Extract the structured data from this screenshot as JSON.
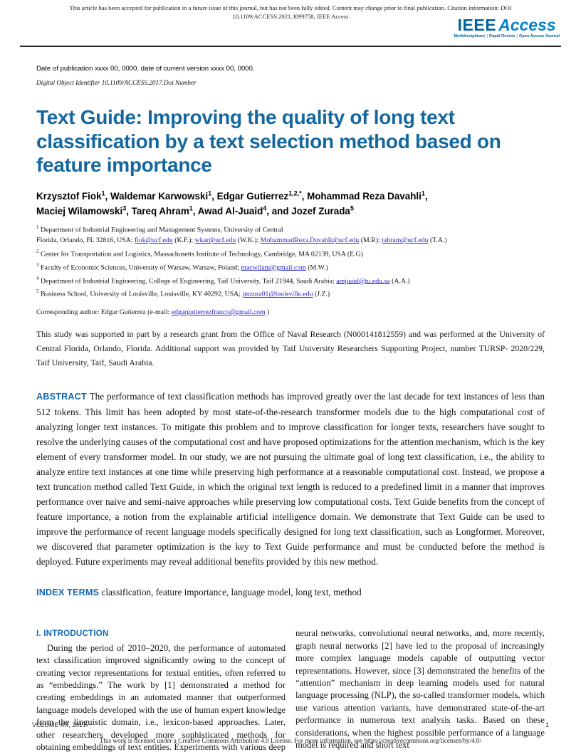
{
  "colors": {
    "title_blue": "#15679F",
    "label_blue": "#1268B3",
    "link_blue": "#2222CC",
    "logo_ieee_blue": "#00629B",
    "logo_access_blue": "#0083CA",
    "logo_pipe_orange": "#E37222"
  },
  "header": {
    "note_line1": "This article has been accepted for publication in a future issue of this journal, but has not been fully edited. Content may change prior to final publication. Citation information: DOI",
    "note_line2": "10.1109/ACCESS.2021.3099758, IEEE Access",
    "logo": {
      "ieee": "IEEE",
      "access": "Access",
      "tagline": [
        "Multidisciplinary",
        "Rapid Review",
        "Open Access Journal"
      ]
    }
  },
  "meta": {
    "date_line": "Date of publication xxxx 00, 0000, date of current version xxxx 00, 0000.",
    "doi_line": "Digital Object Identifier 10.1109/ACCESS.2017.Doi Number"
  },
  "title": "Text Guide: Improving the quality of long text classification by a text selection method based on feature importance",
  "authors": [
    {
      "name": "Krzysztof Fiok",
      "sup": "1",
      "sep": ", "
    },
    {
      "name": "Waldemar Karwowski",
      "sup": "1",
      "sep": ", "
    },
    {
      "name": "Edgar Gutierrez",
      "sup": "1,2,*",
      "sep": ", "
    },
    {
      "name": "Mohammad Reza Davahli",
      "sup": "1",
      "sep": ","
    },
    {
      "name": "Maciej Wilamowski",
      "sup": "3",
      "sep": ", "
    },
    {
      "name": "Tareq Ahram",
      "sup": "1",
      "sep": ", "
    },
    {
      "name": "Awad Al-Juaid",
      "sup": "4",
      "sep": ", and "
    },
    {
      "name": "Jozef Zurada",
      "sup": "5",
      "sep": ""
    }
  ],
  "affiliations": {
    "a1": {
      "sup": "1",
      "text_a": " Department of Industrial Engineering and Management Systems, University of Central",
      "text_b": "Florida, Orlando, FL 32816, USA; ",
      "link1": "fiok@ucf.edu",
      "mid1": "  (K.F.); ",
      "link2": "wkar@ucf.edu",
      "mid2": "  (W.K.); ",
      "link3": "MohammadReza.Davahli@ucf.edu",
      "mid3": " (M.R); ",
      "link4": "tahram@ucf.edu",
      "tail": "  (T.A.)"
    },
    "a2": {
      "sup": "2",
      "text": " Center for Transportation and Logistics, Massachusetts Institute of Technology, Cambridge, MA 02139, USA (E.G)"
    },
    "a3": {
      "sup": "3",
      "text": " Faculty of Economic Sciences, University of Warsaw, Warsaw, Poland; ",
      "link": "macwilam@gmail.com",
      "tail": " (M.W.)"
    },
    "a4": {
      "sup": "4",
      "text": " Department of Industrial Engineering, College of Engineering, Taif University, Taif 21944, Saudi Arabia; ",
      "link": "amjuaid@tu.edu.sa",
      "tail": " (A.A.)"
    },
    "a5": {
      "sup": "5",
      "text": " Business School, University of Louisville, Louisville, KY 40292, USA; ",
      "link": "jmzura01@louisville.edu",
      "tail": " (J.Z.)"
    }
  },
  "corresponding": {
    "prefix": "Corresponding author: Edgar Gutierrez (e-mail: ",
    "email": "edgargutierrezfranco@gmail.com",
    "suffix": " )"
  },
  "funding": "This study was supported in part by a research grant from the Office of Naval Research (N000141812559) and was performed at the University of Central Florida, Orlando, Florida. Additional support was provided by Taif University Researchers Supporting Project, number TURSP- 2020/229, Taif University, Taif, Saudi Arabia.",
  "abstract": {
    "label": "ABSTRACT",
    "text": "The performance of text classification methods has improved greatly over the last decade for text instances of less than 512 tokens. This limit has been adopted by most state-of-the-research transformer models due to the high computational cost of analyzing longer text instances. To mitigate this problem and to improve classification for longer texts, researchers have sought to resolve the underlying causes of the computational cost and have proposed optimizations for the attention mechanism, which is the key element of every transformer model. In our study, we are not pursuing the ultimate goal of long text classification, i.e., the ability to analyze entire text instances at one time while preserving high performance at a reasonable computational cost. Instead, we propose a text truncation method called Text Guide, in which the original text length is reduced to a predefined limit in a manner that improves performance over naive and semi-naive approaches while preserving low computational costs. Text Guide benefits from the concept of feature importance, a notion from the explainable artificial intelligence domain. We demonstrate that Text Guide can be used to improve the performance of recent language models specifically designed for long text classification, such as Longformer. Moreover, we discovered that parameter optimization is the key to Text Guide performance and must be conducted before the method is deployed. Future experiments may reveal additional benefits provided by this new method."
  },
  "index_terms": {
    "label": "INDEX TERMS",
    "text": "classification, feature importance, language model, long text, method"
  },
  "introduction": {
    "heading": "I. INTRODUCTION",
    "left_column": "During the period of 2010–2020, the performance of automated text classification improved significantly owing to the concept of creating vector representations for textual entities, often referred to as “embeddings.” The work by [1] demonstrated a method for creating embeddings in an automated manner that outperformed language models developed with the use of human expert knowledge from the linguistic domain, i.e., lexicon-based approaches. Later, other researchers developed more sophisticated methods for obtaining embeddings of text entities. Experiments with various deep neural networks (DNNs) such as recurrent",
    "right_column": "neural networks, convolutional neural networks, and, more recently, graph neural networks [2] have led to the proposal of increasingly more complex language models capable of outputting vector representations. However, since [3] demonstrated the benefits of the “attention” mechanism in deep learning models used for natural language processing (NLP), the so-called transformer models, which use various attention variants, have demonstrated state-of-the-art performance in numerous text analysis tasks. Based on these considerations, when the highest possible performance of a language model is required and short text",
    "left_indent_first_line": true
  },
  "footer": {
    "volume": "VOLUME XX, 2017",
    "page": "1",
    "license": "This work is licensed under a Creative Commons Attribution 4.0 License. For more information, see https://creativecommons.org/licenses/by/4.0/"
  }
}
